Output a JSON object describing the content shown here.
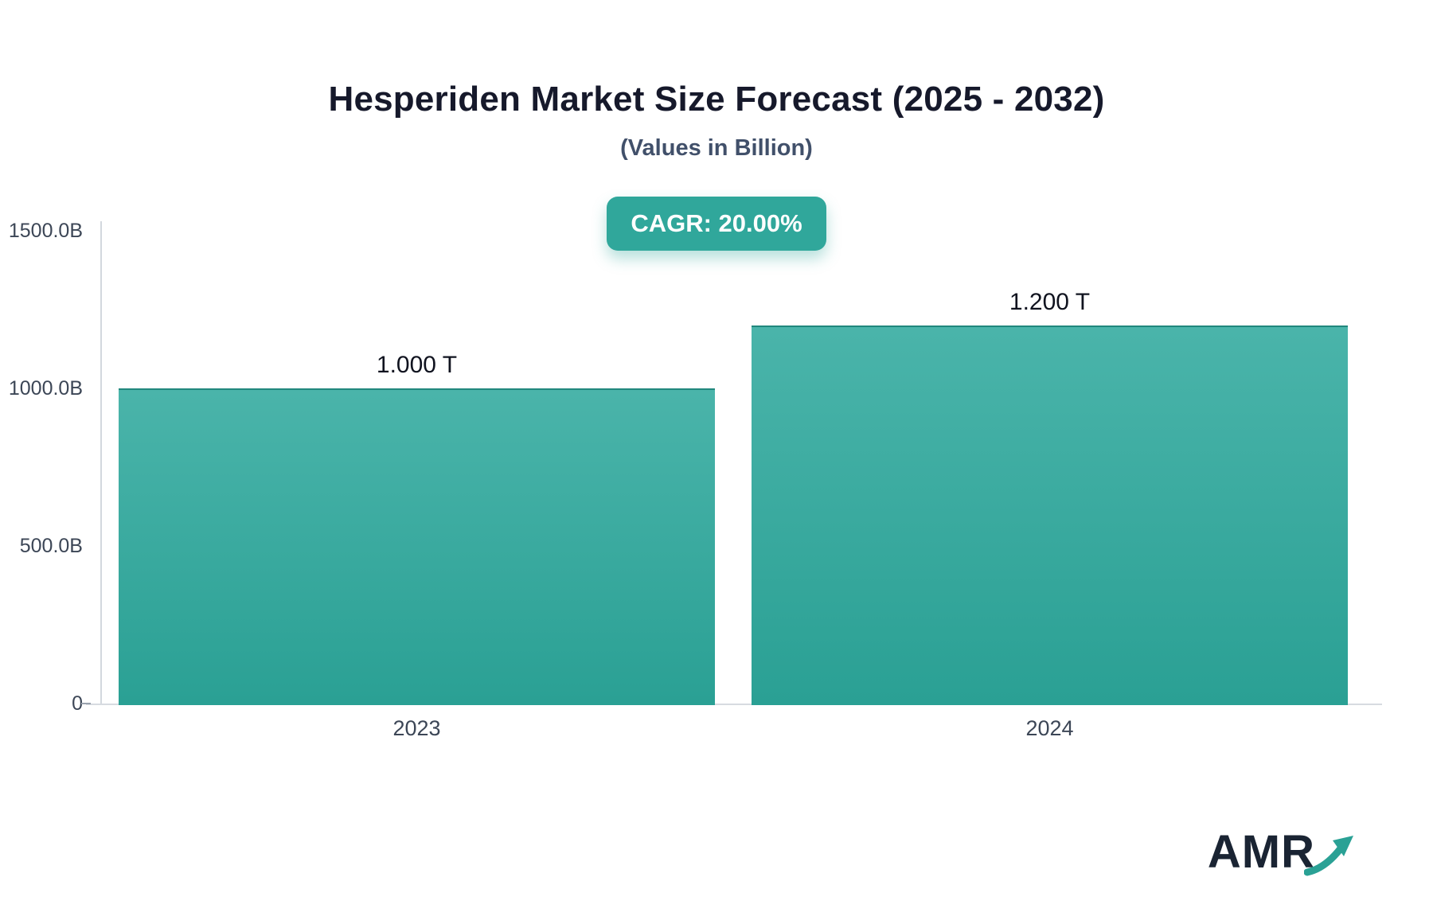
{
  "chart": {
    "title": "Hesperiden Market Size Forecast (2025 - 2032)",
    "subtitle": "(Values in Billion)",
    "cagr_label": "CAGR: 20.00%"
  },
  "logo": {
    "text": "AMR"
  },
  "colors": {
    "bar_top": "#4ab4aa",
    "bar_bottom": "#2aa094",
    "badge": "#30a79b",
    "axis": "#d3d8de",
    "accent_arrow": "#2aa195"
  },
  "chart_data": {
    "type": "bar",
    "title": "Hesperiden Market Size Forecast (2025 - 2032)",
    "subtitle": "(Values in Billion)",
    "cagr": "CAGR: 20.00%",
    "categories": [
      "2023",
      "2024"
    ],
    "values": [
      1000,
      1200
    ],
    "value_labels": [
      "1.000 T",
      "1.200 T"
    ],
    "xlabel": "",
    "ylabel": "",
    "ylim": [
      0,
      1500
    ],
    "yticks": [
      0,
      500,
      1000,
      1500
    ],
    "ytick_labels": [
      "0",
      "500.0B",
      "1000.0B",
      "1500.0B"
    ],
    "grid": false,
    "legend": "none"
  }
}
